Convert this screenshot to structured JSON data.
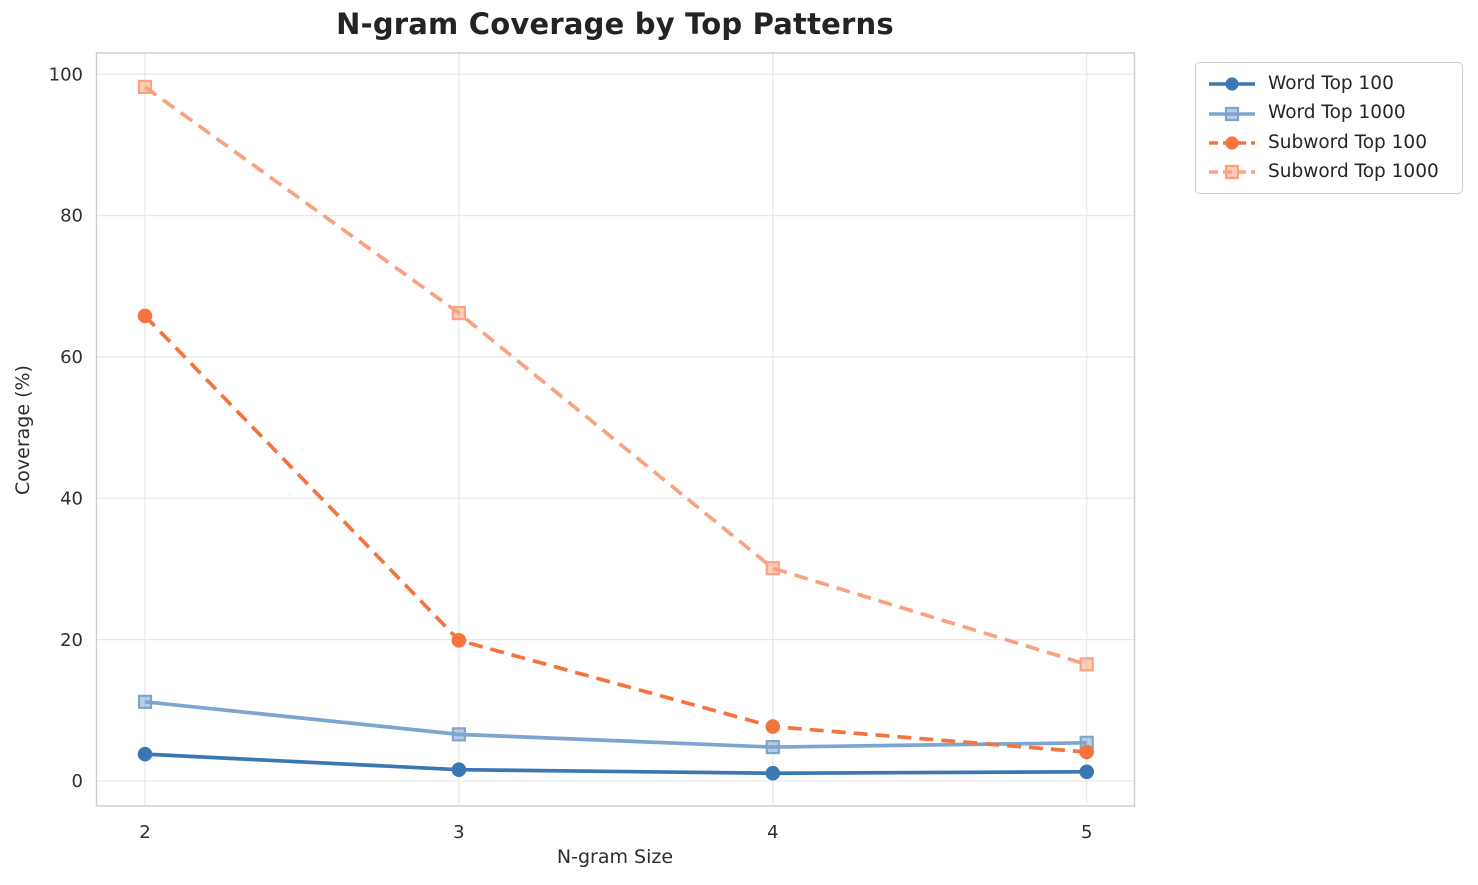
{
  "chart_data": {
    "type": "line",
    "title": "N-gram Coverage by Top Patterns",
    "xlabel": "N-gram Size",
    "ylabel": "Coverage (%)",
    "x": [
      2,
      3,
      4,
      5
    ],
    "xticks": [
      2,
      3,
      4,
      5
    ],
    "yticks": [
      0,
      20,
      40,
      60,
      80,
      100
    ],
    "xlim": [
      1.85,
      5.15
    ],
    "ylim": [
      -3.6,
      103.2
    ],
    "grid": true,
    "legend_position": "outside-upper-right",
    "series": [
      {
        "name": "Word Top 100",
        "values": [
          3.8,
          1.6,
          1.1,
          1.3
        ],
        "color": "#3a78b3",
        "marker": "circle",
        "line_style": "solid"
      },
      {
        "name": "Word Top 1000",
        "values": [
          11.2,
          6.6,
          4.8,
          5.4
        ],
        "color": "#7ca6cf",
        "marker": "square",
        "line_style": "solid"
      },
      {
        "name": "Subword Top 100",
        "values": [
          65.8,
          19.9,
          7.7,
          4.1
        ],
        "color": "#f5743e",
        "marker": "circle",
        "line_style": "dashed"
      },
      {
        "name": "Subword Top 1000",
        "values": [
          98.2,
          66.2,
          30.1,
          16.5
        ],
        "color": "#f9a27f",
        "marker": "square",
        "line_style": "dashed"
      }
    ]
  }
}
